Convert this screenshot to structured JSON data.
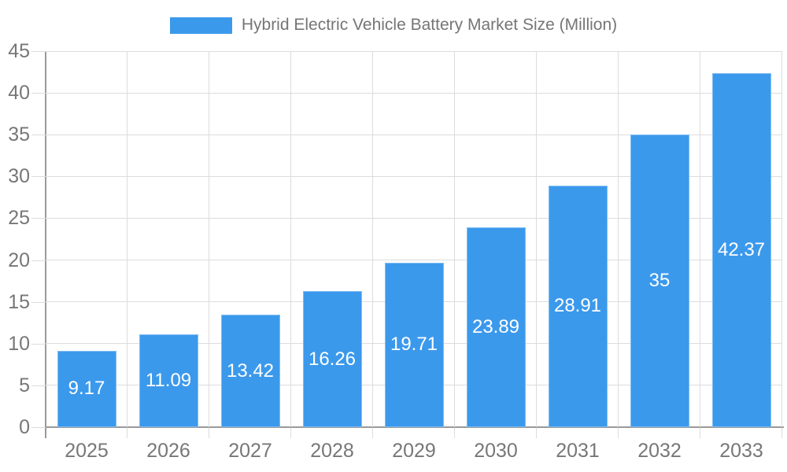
{
  "legend": {
    "label": "Hybrid Electric Vehicle Battery Market Size (Million)",
    "swatch_color": "#3B99EC"
  },
  "chart_data": {
    "type": "bar",
    "title": "Hybrid Electric Vehicle Battery Market Size (Million)",
    "categories": [
      "2025",
      "2026",
      "2027",
      "2028",
      "2029",
      "2030",
      "2031",
      "2032",
      "2033"
    ],
    "values": [
      9.17,
      11.09,
      13.42,
      16.26,
      19.71,
      23.89,
      28.91,
      35,
      42.37
    ],
    "value_labels": [
      "9.17",
      "11.09",
      "13.42",
      "16.26",
      "19.71",
      "23.89",
      "28.91",
      "35",
      "42.37"
    ],
    "xlabel": "",
    "ylabel": "",
    "ylim": [
      0,
      45
    ],
    "yticks": [
      0,
      5,
      10,
      15,
      20,
      25,
      30,
      35,
      40,
      45
    ],
    "grid": true,
    "legend_position": "top",
    "bar_color": "#3B99EC",
    "value_label_color": "#FFFFFF",
    "axis_text_color": "#777777",
    "grid_color": "#DCDCDC",
    "axis_line_color": "#999999"
  }
}
